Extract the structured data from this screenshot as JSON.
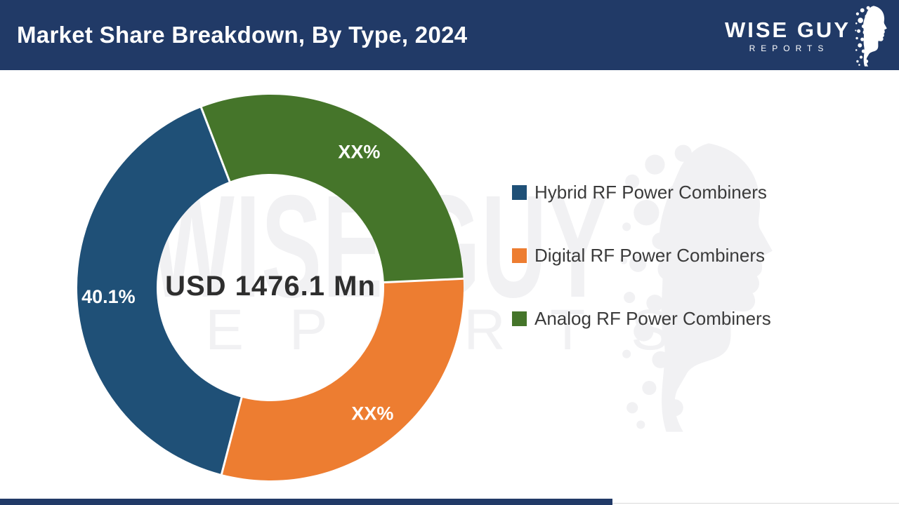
{
  "header": {
    "title": "Market Share Breakdown, By Type, 2024",
    "logo": {
      "name": "WISE GUY",
      "sub": "REPORTS"
    }
  },
  "watermark": {
    "text": "WISE GUY",
    "sub": "REPORTS"
  },
  "chart_data": {
    "type": "pie",
    "subtype": "donut",
    "title": "Market Share Breakdown, By Type, 2024",
    "center_label": "USD 1476.1 Mn",
    "rotation_deg": -21,
    "legend_position": "right",
    "units": "percent of market share",
    "slices": [
      {
        "name": "Analog RF Power Combiners",
        "value": 30.1,
        "display": "XX%",
        "color": "#45752A"
      },
      {
        "name": "Digital RF Power Combiners",
        "value": 29.8,
        "display": "XX%",
        "color": "#ED7D31"
      },
      {
        "name": "Hybrid RF Power Combiners",
        "value": 40.1,
        "display": "40.1%",
        "color": "#1F5077"
      }
    ]
  },
  "legend": {
    "items": [
      {
        "label": "Hybrid RF Power Combiners",
        "color": "#1F5077"
      },
      {
        "label": "Digital RF Power Combiners",
        "color": "#ED7D31"
      },
      {
        "label": "Analog RF Power Combiners",
        "color": "#45752A"
      }
    ]
  },
  "colors": {
    "header_bg": "#213A67",
    "footer_bg": "#213A67",
    "watermark": "#F1F1F3",
    "center_text": "#2E2E2E",
    "slice_label_text": "#FFFFFF",
    "legend_text": "#3B3B3B"
  }
}
